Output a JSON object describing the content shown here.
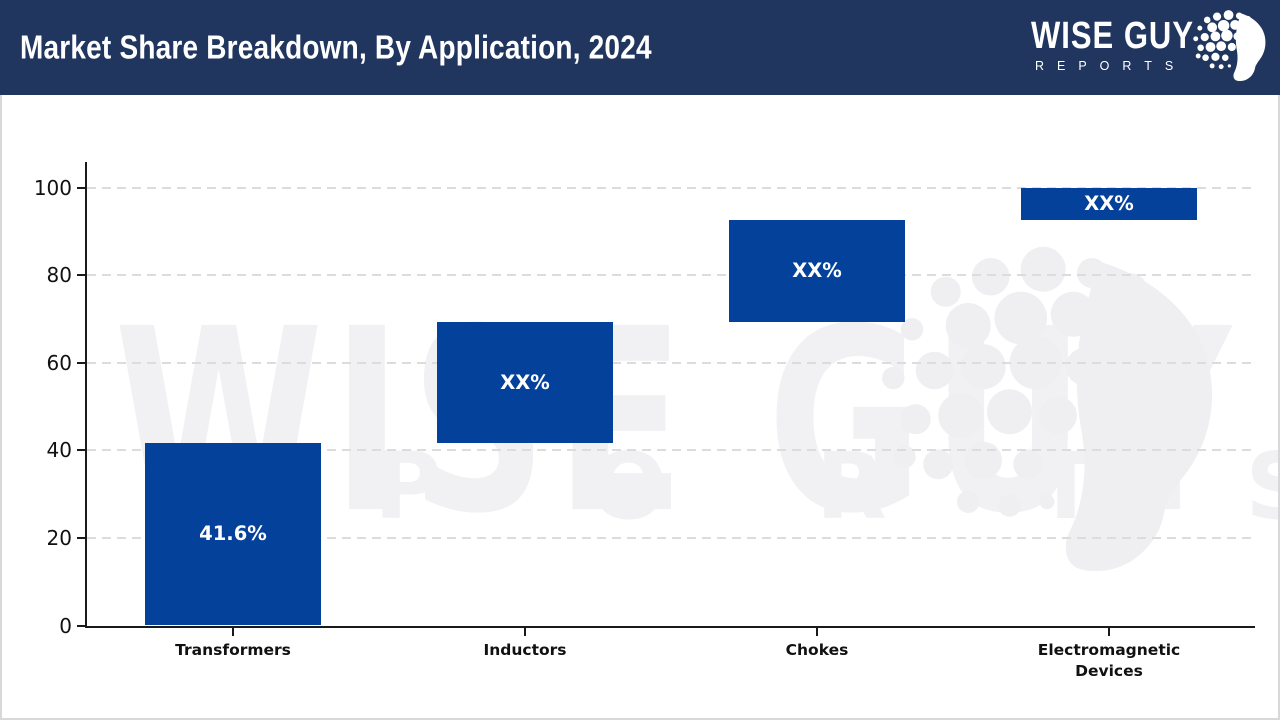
{
  "header": {
    "title": "Market Share Breakdown, By Application, 2024",
    "logo": {
      "line1": "WISE GUY",
      "line2": "REPORTS"
    }
  },
  "watermark": {
    "line1": "WISE GUY",
    "line2": "P O R T S"
  },
  "chart_data": {
    "type": "bar",
    "subtype": "waterfall",
    "title": "Market Share Breakdown, By Application, 2024",
    "categories": [
      "Transformers",
      "Inductors",
      "Chokes",
      "Electromagnetic Devices"
    ],
    "segments": [
      {
        "category": "Transformers",
        "start": 0,
        "end": 41.6,
        "label": "41.6%"
      },
      {
        "category": "Inductors",
        "start": 41.6,
        "end": 69.3,
        "label": "XX%"
      },
      {
        "category": "Chokes",
        "start": 69.3,
        "end": 92.6,
        "label": "XX%"
      },
      {
        "category": "Electromagnetic Devices",
        "start": 92.6,
        "end": 100.0,
        "label": "XX%"
      }
    ],
    "yticks": [
      0,
      20,
      40,
      60,
      80,
      100
    ],
    "ylim": [
      0,
      105
    ],
    "xlabel": "",
    "ylabel": "",
    "grid": "horizontal-dashed",
    "legend": "none",
    "bar_color": "#04419a",
    "bar_label_color": "#ffffff",
    "axis_color": "#1a1a1a",
    "grid_color": "#dcdcdc"
  },
  "colors": {
    "header_bg": "#21365f",
    "header_text": "#ffffff",
    "card_border": "#d8d8da",
    "watermark": "#f1f1f4",
    "tick_text": "#111111"
  }
}
